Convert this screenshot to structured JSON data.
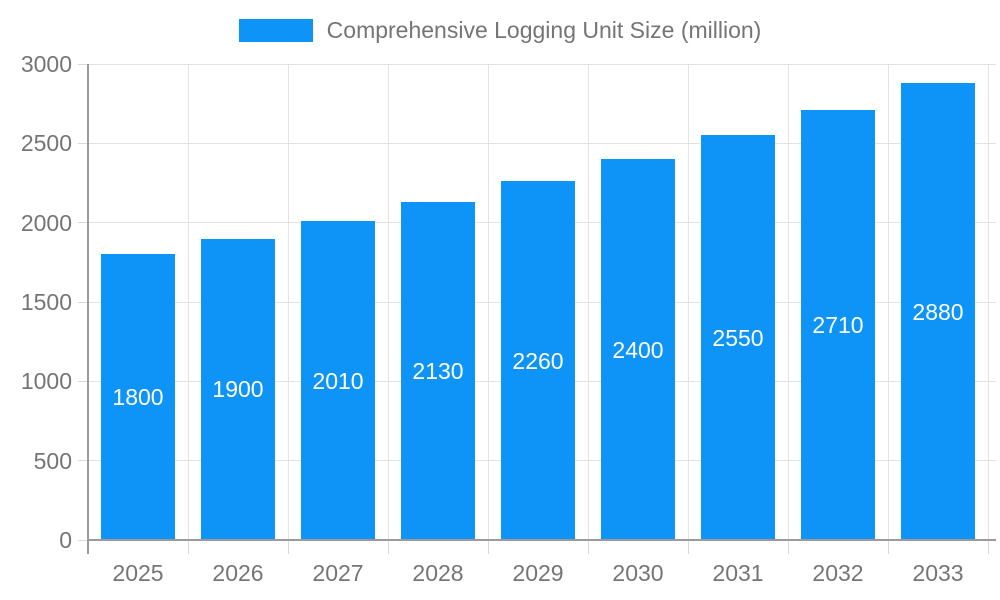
{
  "chart_data": {
    "type": "bar",
    "title": "Comprehensive Logging Unit Size (million)",
    "categories": [
      "2025",
      "2026",
      "2027",
      "2028",
      "2029",
      "2030",
      "2031",
      "2032",
      "2033"
    ],
    "values": [
      1800,
      1900,
      2010,
      2130,
      2260,
      2400,
      2550,
      2710,
      2880
    ],
    "series": [
      {
        "name": "Comprehensive Logging Unit Size (million)",
        "values": [
          1800,
          1900,
          2010,
          2130,
          2260,
          2400,
          2550,
          2710,
          2880
        ]
      }
    ],
    "xlabel": "",
    "ylabel": "",
    "ylim": [
      0,
      3000
    ],
    "yticks": [
      0,
      500,
      1000,
      1500,
      2000,
      2500,
      3000
    ],
    "grid": true,
    "legend_position": "top-center",
    "bar_labels_visible": true,
    "colors": {
      "bar": "#0D94F6",
      "bar_label_text": "#ffffff",
      "axis_line": "#9a9a9a",
      "gridline": "#e3e3e3",
      "tick": "#d9d9d9",
      "text": "#757575",
      "background": "#ffffff"
    }
  }
}
